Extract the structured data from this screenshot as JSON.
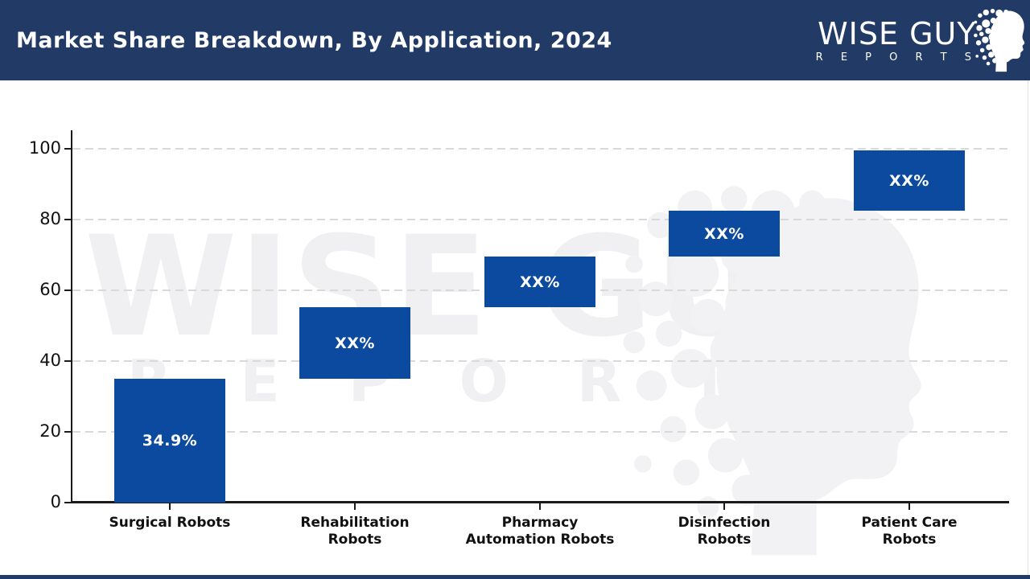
{
  "header": {
    "title": "Market Share Breakdown, By Application, 2024",
    "logo": {
      "wordmark": "WISE GUY",
      "subtext": "R E P O R T S"
    }
  },
  "watermark": {
    "wordmark": "WISE GUY",
    "subtext": "R E P O R T S"
  },
  "chart_data": {
    "type": "bar",
    "subtype": "waterfall",
    "title": "Market Share Breakdown, By Application, 2024",
    "categories": [
      "Surgical Robots",
      "Rehabilitation\nRobots",
      "Pharmacy\nAutomation Robots",
      "Disinfection\nRobots",
      "Patient Care\nRobots"
    ],
    "segments": [
      {
        "category": "Surgical Robots",
        "start": 0,
        "end": 34.9,
        "value_label": "34.9%"
      },
      {
        "category": "Rehabilitation Robots",
        "start": 34.9,
        "end": 55.2,
        "value_label": "XX%"
      },
      {
        "category": "Pharmacy Automation Robots",
        "start": 55.2,
        "end": 69.5,
        "value_label": "XX%"
      },
      {
        "category": "Disinfection Robots",
        "start": 69.5,
        "end": 82.5,
        "value_label": "XX%"
      },
      {
        "category": "Patient Care Robots",
        "start": 82.5,
        "end": 99.5,
        "value_label": "XX%"
      }
    ],
    "xlabel": "",
    "ylabel": "",
    "ylim": [
      0,
      105
    ],
    "yticks": [
      0,
      20,
      40,
      60,
      80,
      100
    ],
    "grid": "horizontal-dashed",
    "legend": "none",
    "colors": {
      "bar": "#0b4a9e",
      "header_bg": "#213a66",
      "grid": "#d9d9d9",
      "axis": "#1a1a1a",
      "value_label": "#ffffff",
      "watermark": "#f0f0f3"
    }
  }
}
